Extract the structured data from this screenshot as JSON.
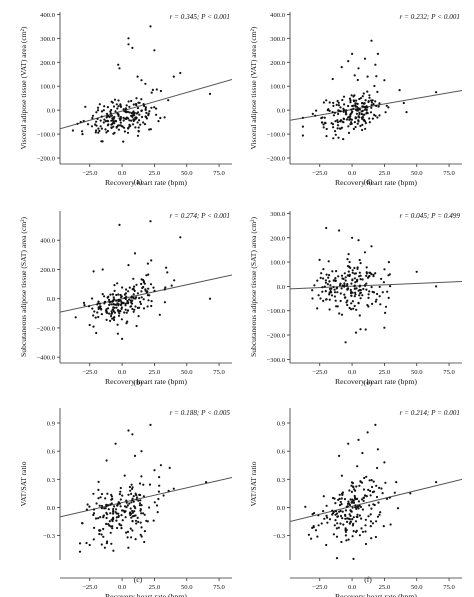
{
  "chart_data": [
    {
      "type": "scatter",
      "panel": "(a)",
      "stat": "r = 0.345; P < 0.001",
      "xlabel": "Recovery heart rate (bpm)",
      "ylabel": "Visceral adipose tissue (VAT) area (cm²)",
      "xticks": [
        -25,
        0,
        25,
        50,
        75
      ],
      "xtick_labels": [
        "−25.0",
        "0.0",
        "25.0",
        "50.0",
        "75.0"
      ],
      "yticks": [
        -200,
        -100,
        0,
        100,
        200,
        300,
        400
      ],
      "ytick_labels": [
        "−200.0",
        "−100.0",
        "0.0",
        "100.0",
        "200.0",
        "300.0",
        "400.0"
      ],
      "xlim": [
        -48,
        85
      ],
      "ylim": [
        -225,
        410
      ],
      "fit_line": {
        "x": [
          -48,
          85
        ],
        "y": [
          -78,
          128
        ]
      },
      "points": {
        "x_mean": 0,
        "x_sd": 14,
        "y_base": -30,
        "y_slope": 1.1,
        "y_spread": 38,
        "n": 200,
        "outliers": [
          [
            5,
            300
          ],
          [
            5,
            275
          ],
          [
            8,
            260
          ],
          [
            22,
            350
          ],
          [
            25,
            250
          ],
          [
            -3,
            190
          ],
          [
            12,
            140
          ],
          [
            15,
            125
          ],
          [
            45,
            155
          ],
          [
            -2,
            175
          ],
          [
            18,
            110
          ],
          [
            30,
            80
          ],
          [
            68,
            68
          ],
          [
            40,
            140
          ]
        ]
      }
    },
    {
      "type": "scatter",
      "panel": "(d)",
      "stat": "r = 0.232; P < 0.001",
      "xlabel": "Recovery heart rate (bpm)",
      "ylabel": "Visceral adipose tissue (VAT) area (cm²)",
      "xticks": [
        -25,
        0,
        25,
        50,
        75
      ],
      "xtick_labels": [
        "−25.0",
        "0.0",
        "25.0",
        "50.0",
        "75.0"
      ],
      "yticks": [
        -200,
        -100,
        0,
        100,
        200,
        300,
        400
      ],
      "ytick_labels": [
        "−200.0",
        "−100.0",
        "0.0",
        "100.0",
        "200.0",
        "300.0",
        "400.0"
      ],
      "xlim": [
        -48,
        85
      ],
      "ylim": [
        -225,
        410
      ],
      "fit_line": {
        "x": [
          -48,
          85
        ],
        "y": [
          -42,
          82
        ]
      },
      "points": {
        "x_mean": 0,
        "x_sd": 14,
        "y_base": -10,
        "y_slope": 0.9,
        "y_spread": 40,
        "n": 200,
        "outliers": [
          [
            0,
            235
          ],
          [
            -3,
            205
          ],
          [
            10,
            215
          ],
          [
            15,
            290
          ],
          [
            20,
            235
          ],
          [
            18,
            190
          ],
          [
            -8,
            180
          ],
          [
            5,
            175
          ],
          [
            2,
            145
          ],
          [
            12,
            140
          ],
          [
            25,
            125
          ],
          [
            -15,
            130
          ],
          [
            65,
            75
          ],
          [
            40,
            30
          ]
        ]
      }
    },
    {
      "type": "scatter",
      "panel": "(b)",
      "stat": "r = 0.274; P < 0.001",
      "xlabel": "Recovery heart rate (bpm)",
      "ylabel": "Subcutaneous adipose tissue (SAT) area (cm²)",
      "xticks": [
        -25,
        0,
        25,
        50,
        75
      ],
      "xtick_labels": [
        "−25.0",
        "0.0",
        "25.0",
        "50.0",
        "75.0"
      ],
      "yticks": [
        -400,
        -200,
        0,
        200,
        400
      ],
      "ytick_labels": [
        "−400.0",
        "−200.0",
        "0.0",
        "200.0",
        "400.0"
      ],
      "xlim": [
        -48,
        85
      ],
      "ylim": [
        -440,
        600
      ],
      "fit_line": {
        "x": [
          -48,
          85
        ],
        "y": [
          -92,
          162
        ]
      },
      "points": {
        "x_mean": 0,
        "x_sd": 14,
        "y_base": -20,
        "y_slope": 1.8,
        "y_spread": 75,
        "n": 200,
        "outliers": [
          [
            -2,
            505
          ],
          [
            22,
            530
          ],
          [
            45,
            420
          ],
          [
            10,
            310
          ],
          [
            20,
            240
          ],
          [
            -15,
            200
          ],
          [
            5,
            230
          ],
          [
            35,
            180
          ],
          [
            -20,
            -235
          ],
          [
            0,
            -275
          ],
          [
            68,
            0
          ],
          [
            -25,
            -180
          ]
        ]
      }
    },
    {
      "type": "scatter",
      "panel": "(e)",
      "stat": "r = 0.045; P = 0.499",
      "xlabel": "Recovery heart rate (bpm)",
      "ylabel": "Subcutaneous adipose tissue (SAT) area (cm²)",
      "xticks": [
        -25,
        0,
        25,
        50,
        75
      ],
      "xtick_labels": [
        "−25.0",
        "0.0",
        "25.0",
        "50.0",
        "75.0"
      ],
      "yticks": [
        -300,
        -200,
        -100,
        0,
        100,
        200,
        300
      ],
      "ytick_labels": [
        "−300.0",
        "−200.0",
        "−100.0",
        "0.0",
        "100.0",
        "200.0",
        "300.0"
      ],
      "xlim": [
        -48,
        85
      ],
      "ylim": [
        -315,
        310
      ],
      "fit_line": {
        "x": [
          -48,
          85
        ],
        "y": [
          -10,
          20
        ]
      },
      "points": {
        "x_mean": 0,
        "x_sd": 14,
        "y_base": 0,
        "y_slope": 0.2,
        "y_spread": 55,
        "n": 200,
        "outliers": [
          [
            -20,
            240
          ],
          [
            -10,
            230
          ],
          [
            0,
            200
          ],
          [
            5,
            190
          ],
          [
            15,
            165
          ],
          [
            -5,
            -230
          ],
          [
            3,
            -190
          ],
          [
            25,
            -170
          ],
          [
            50,
            60
          ],
          [
            65,
            0
          ],
          [
            10,
            140
          ]
        ]
      }
    },
    {
      "type": "scatter",
      "panel": "(c)",
      "stat": "r = 0.188; P < 0.005",
      "xlabel": "Recovery heart rate (bpm)",
      "ylabel": "VAT/SAT ratio",
      "xticks": [
        -25,
        0,
        25,
        50,
        75
      ],
      "xtick_labels": [
        "−25.0",
        "0.0",
        "25.0",
        "50.0",
        "75.0"
      ],
      "yticks": [
        -0.3,
        0,
        0.3,
        0.6,
        0.9
      ],
      "ytick_labels": [
        "−0.3",
        "0.0",
        "0.3",
        "0.6",
        "0.9"
      ],
      "xlim": [
        -48,
        85
      ],
      "ylim": [
        -0.56,
        1.06
      ],
      "fit_line": {
        "x": [
          -48,
          85
        ],
        "y": [
          -0.1,
          0.32
        ]
      },
      "points": {
        "x_mean": 0,
        "x_sd": 14,
        "y_base": -0.03,
        "y_slope": 0.003,
        "y_spread": 0.17,
        "n": 200,
        "outliers": [
          [
            22,
            0.88
          ],
          [
            5,
            0.82
          ],
          [
            8,
            0.78
          ],
          [
            -5,
            0.68
          ],
          [
            15,
            0.6
          ],
          [
            10,
            0.55
          ],
          [
            -12,
            0.5
          ],
          [
            30,
            0.45
          ],
          [
            65,
            0.27
          ],
          [
            40,
            0.2
          ],
          [
            -25,
            -0.4
          ]
        ]
      }
    },
    {
      "type": "scatter",
      "panel": "(f)",
      "stat": "r = 0.214; P = 0.001",
      "xlabel": "Recovery heart rate (bpm)",
      "ylabel": "VAT/SAT ratio",
      "xticks": [
        -25,
        0,
        25,
        50,
        75
      ],
      "xtick_labels": [
        "−25.0",
        "0.0",
        "25.0",
        "50.0",
        "75.0"
      ],
      "yticks": [
        -0.3,
        0,
        0.3,
        0.6,
        0.9
      ],
      "ytick_labels": [
        "−0.3",
        "0.0",
        "0.3",
        "0.6",
        "0.9"
      ],
      "xlim": [
        -48,
        85
      ],
      "ylim": [
        -0.56,
        1.06
      ],
      "fit_line": {
        "x": [
          -48,
          85
        ],
        "y": [
          -0.15,
          0.3
        ]
      },
      "points": {
        "x_mean": 0,
        "x_sd": 14,
        "y_base": -0.02,
        "y_slope": 0.003,
        "y_spread": 0.18,
        "n": 200,
        "outliers": [
          [
            18,
            0.88
          ],
          [
            12,
            0.8
          ],
          [
            5,
            0.72
          ],
          [
            -3,
            0.68
          ],
          [
            20,
            0.62
          ],
          [
            8,
            0.58
          ],
          [
            -10,
            0.55
          ],
          [
            25,
            0.48
          ],
          [
            65,
            0.27
          ],
          [
            45,
            0.15
          ],
          [
            -20,
            -0.4
          ]
        ]
      }
    }
  ]
}
